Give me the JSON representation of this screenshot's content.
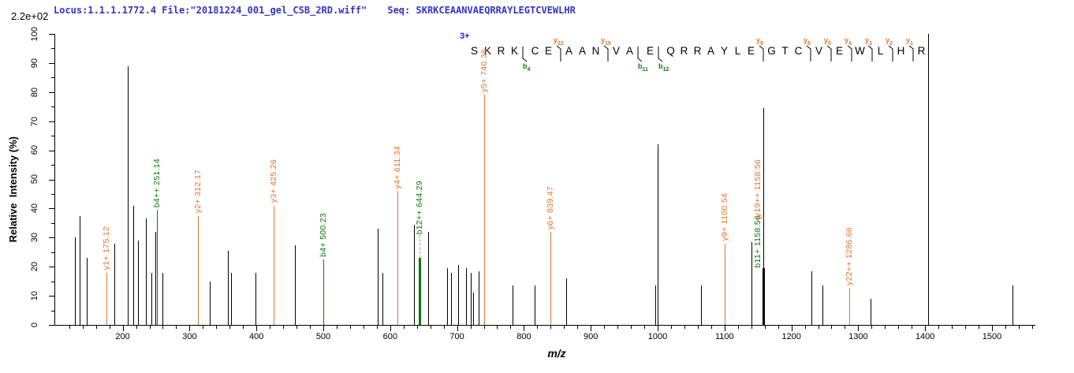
{
  "header": {
    "locus_file": "Locus:1.1.1.1772.4 File:\"20181224_001_gel_CSB_2RD.wiff\"",
    "seq_label": "Seq:",
    "seq_value": "SKRKCEAANVAEQRRAYLEGTCVEWLHR"
  },
  "colors": {
    "y_ion": "#e4732a",
    "b_ion": "#0b7a0b",
    "header_blue": "#3434c8",
    "charge_blue": "#2222dd",
    "peak_black": "#000000"
  },
  "annotation": {
    "charge": "3+",
    "sequence": "SKRKCEAANVAEQRRAYLEGTCVEWLHR",
    "markers": [
      {
        "gap_after": 3,
        "ion": "b",
        "num": 4
      },
      {
        "gap_after": 5,
        "ion": "y",
        "num": 22
      },
      {
        "gap_after": 8,
        "ion": "y",
        "num": 19
      },
      {
        "gap_after": 10,
        "ion": "b",
        "num": 11
      },
      {
        "gap_after": 11,
        "ion": "b",
        "num": 12
      },
      {
        "gap_after": 18,
        "ion": "y",
        "num": 9
      },
      {
        "gap_after": 21,
        "ion": "y",
        "num": 6
      },
      {
        "gap_after": 22,
        "ion": "y",
        "num": 5
      },
      {
        "gap_after": 23,
        "ion": "y",
        "num": 4
      },
      {
        "gap_after": 24,
        "ion": "y",
        "num": 3
      },
      {
        "gap_after": 25,
        "ion": "y",
        "num": 2
      },
      {
        "gap_after": 26,
        "ion": "y",
        "num": 1
      }
    ]
  },
  "chart_data": {
    "type": "bar",
    "subtype": "ms2_stick_spectrum",
    "title": "",
    "xlabel": "m/z",
    "ylabel": "Relative  Intensity (%)",
    "scale_note": "2.2e+02",
    "xlim": [
      98,
      1565
    ],
    "ylim": [
      0,
      100
    ],
    "x_major_ticks": [
      200,
      300,
      400,
      500,
      600,
      700,
      800,
      900,
      1000,
      1100,
      1200,
      1300,
      1400,
      1500
    ],
    "x_minor_step": 20,
    "x_minor_range": [
      120,
      1560
    ],
    "y_major_ticks": [
      0,
      10,
      20,
      30,
      40,
      50,
      60,
      70,
      80,
      90,
      100
    ],
    "y_minor_step": 10,
    "y_minor_start": 5,
    "grid": false,
    "peaks": [
      {
        "mz": 128,
        "i": 30
      },
      {
        "mz": 136,
        "i": 37.5
      },
      {
        "mz": 146,
        "i": 23
      },
      {
        "mz": 175.12,
        "i": 18,
        "c": "y_ion",
        "label": "y1+ 175.12"
      },
      {
        "mz": 187,
        "i": 28
      },
      {
        "mz": 208,
        "i": 89
      },
      {
        "mz": 216,
        "i": 41
      },
      {
        "mz": 223,
        "i": 29
      },
      {
        "mz": 235,
        "i": 36.5
      },
      {
        "mz": 243,
        "i": 18
      },
      {
        "mz": 249,
        "i": 32
      },
      {
        "mz": 251.14,
        "i": 39.5,
        "c": "b_ion",
        "label": "b4++ 251.14"
      },
      {
        "mz": 260,
        "i": 18
      },
      {
        "mz": 312.17,
        "i": 37.5,
        "c": "y_ion",
        "label": "y2+ 312.17"
      },
      {
        "mz": 330,
        "i": 15
      },
      {
        "mz": 357,
        "i": 25.5
      },
      {
        "mz": 362,
        "i": 18
      },
      {
        "mz": 399,
        "i": 18
      },
      {
        "mz": 425.26,
        "i": 41,
        "c": "y_ion",
        "label": "y3+ 425.26"
      },
      {
        "mz": 458,
        "i": 27.5
      },
      {
        "mz": 500.23,
        "i": 22.5,
        "c": "b_ion",
        "label": "b4+ 500.23"
      },
      {
        "mz": 581,
        "i": 33
      },
      {
        "mz": 589,
        "i": 18
      },
      {
        "mz": 611.34,
        "i": 46,
        "c": "y_ion",
        "label": "y4+ 611.34"
      },
      {
        "mz": 636,
        "i": 34.5
      },
      {
        "mz": 644.29,
        "i": 23,
        "c": "b_ion",
        "label": "b12++ 644.29",
        "w": 3,
        "label_at": 31,
        "dashed_connector": true
      },
      {
        "mz": 657,
        "i": 32
      },
      {
        "mz": 685,
        "i": 19.5
      },
      {
        "mz": 691,
        "i": 18
      },
      {
        "mz": 702,
        "i": 20.5
      },
      {
        "mz": 714,
        "i": 19.5
      },
      {
        "mz": 721,
        "i": 18
      },
      {
        "mz": 724,
        "i": 11
      },
      {
        "mz": 732,
        "i": 18.5
      },
      {
        "mz": 740.36,
        "i": 79,
        "c": "y_ion",
        "label": "y5+ 740.36"
      },
      {
        "mz": 783,
        "i": 13.5
      },
      {
        "mz": 816,
        "i": 13.5
      },
      {
        "mz": 839.47,
        "i": 32,
        "c": "y_ion",
        "label": "y6+ 839.47"
      },
      {
        "mz": 863,
        "i": 16
      },
      {
        "mz": 996,
        "i": 13.5
      },
      {
        "mz": 1000,
        "i": 62
      },
      {
        "mz": 1065,
        "i": 13.5
      },
      {
        "mz": 1100.54,
        "i": 28,
        "c": "y_ion",
        "label": "y9+ 1100.54"
      },
      {
        "mz": 1140,
        "i": 28.5
      },
      {
        "mz": 1158.56,
        "i": 74.5,
        "base_thick_to": 19.5,
        "labels": [
          {
            "text": "b11+ 1158.56",
            "c": "b_ion",
            "at": 19.5
          },
          {
            "text": "y19++ 1158.56",
            "c": "y_ion",
            "at": 36.5,
            "hdash": true
          }
        ]
      },
      {
        "mz": 1230,
        "i": 18.5
      },
      {
        "mz": 1246,
        "i": 13.5
      },
      {
        "mz": 1286.66,
        "i": 12.7,
        "c": "y_ion",
        "label": "y22++ 1286.66"
      },
      {
        "mz": 1318,
        "i": 9
      },
      {
        "mz": 1404,
        "i": 100
      },
      {
        "mz": 1531,
        "i": 13.5
      }
    ]
  }
}
